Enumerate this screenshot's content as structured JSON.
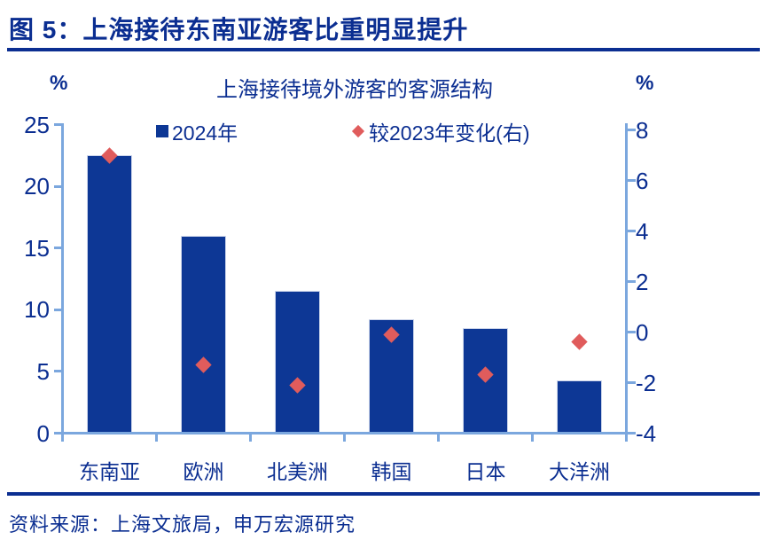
{
  "figure": {
    "title": "图 5：上海接待东南亚游客比重明显提升",
    "source": "资料来源：上海文旅局，申万宏源研究"
  },
  "colors": {
    "navy_text": "#0B2E91",
    "bar_fill": "#0D3795",
    "axis_line": "#7BA7DE",
    "marker_red": "#E05C5C"
  },
  "chart_data": {
    "type": "bar",
    "title": "上海接待境外游客的客源结构",
    "categories": [
      "东南亚",
      "欧洲",
      "北美洲",
      "韩国",
      "日本",
      "大洋洲"
    ],
    "series": [
      {
        "name": "2024年",
        "type": "bar",
        "axis": "left",
        "values": [
          22.5,
          16.0,
          11.5,
          9.2,
          8.5,
          4.3
        ]
      },
      {
        "name": "较2023年变化(右)",
        "type": "scatter",
        "axis": "right",
        "values": [
          7.0,
          -1.3,
          -2.1,
          -0.1,
          -1.7,
          -0.4
        ]
      }
    ],
    "left_axis": {
      "label": "%",
      "min": 0,
      "max": 25,
      "ticks": [
        25,
        20,
        15,
        10,
        5,
        0
      ]
    },
    "right_axis": {
      "label": "%",
      "min": -4,
      "max": 8,
      "ticks": [
        8,
        6,
        4,
        2,
        0,
        -2,
        -4
      ]
    },
    "legend_position": "top",
    "grid": false
  }
}
